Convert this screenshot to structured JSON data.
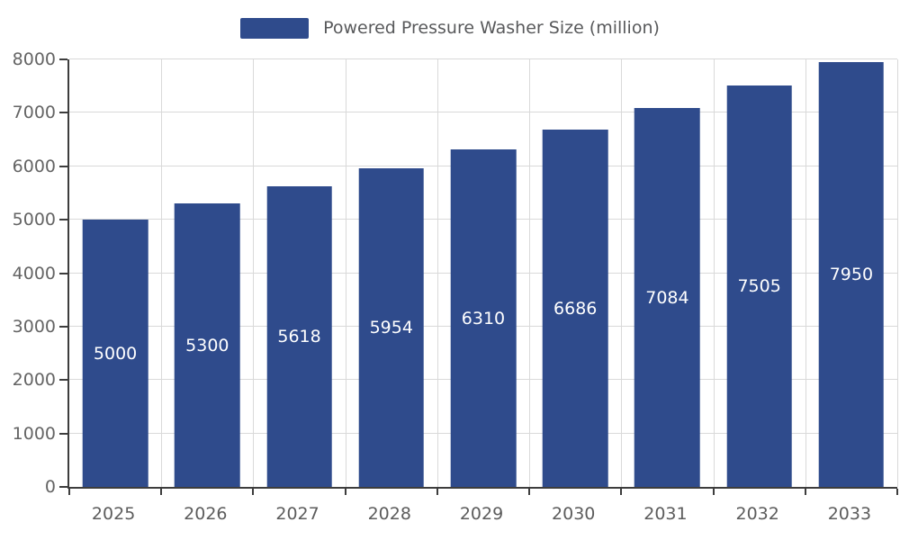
{
  "chart_data": {
    "type": "bar",
    "title": "",
    "legend": "Powered Pressure Washer Size (million)",
    "categories": [
      "2025",
      "2026",
      "2027",
      "2028",
      "2029",
      "2030",
      "2031",
      "2032",
      "2033"
    ],
    "values": [
      5000,
      5300,
      5618,
      5954,
      6310,
      6686,
      7084,
      7505,
      7950
    ],
    "ylim": [
      0,
      8000
    ],
    "ytick_step": 1000,
    "grid": true,
    "legend_position": "top",
    "bar_color": "#2F4B8C",
    "bar_label_color": "#ffffff",
    "axis_color": "#3d3d3d",
    "gridline_color": "#d9d9d9"
  }
}
